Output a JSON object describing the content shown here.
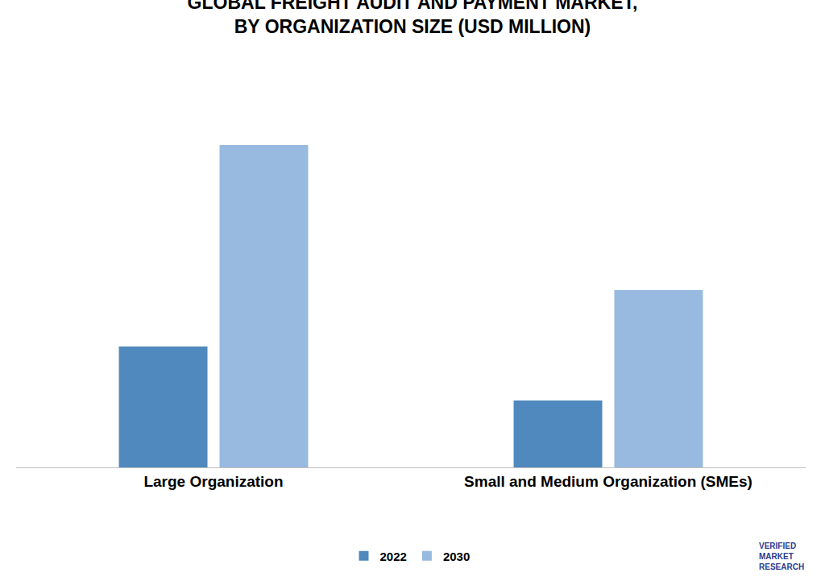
{
  "chart_data": {
    "type": "bar",
    "title": "GLOBAL FREIGHT AUDIT AND PAYMENT MARKET, BY ORGANIZATION SIZE (USD MILLION)",
    "categories": [
      "Large Organization",
      "Small and Medium Organization (SMEs)"
    ],
    "series": [
      {
        "name": "2022",
        "color": "#4f89bd",
        "values": [
          150,
          83
        ]
      },
      {
        "name": "2030",
        "color": "#98b9e0",
        "values": [
          400,
          220
        ]
      }
    ],
    "ylim": [
      0,
      440
    ],
    "grid": false,
    "legend": "bottom",
    "tick_labels": "x",
    "annotation": "VERIFIED MARKET RESEARCH"
  }
}
